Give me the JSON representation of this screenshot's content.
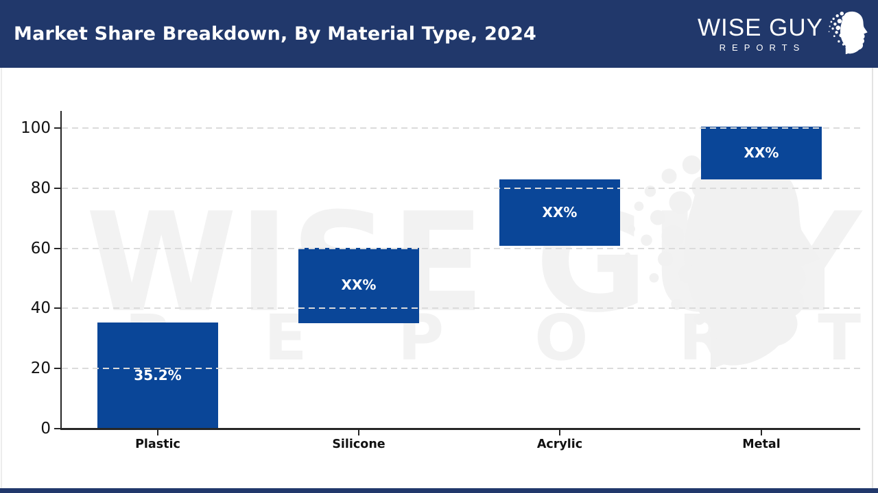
{
  "header": {
    "title": "Market Share Breakdown, By Material Type, 2024",
    "logo": {
      "line1": "WISE GUY",
      "line2": "REPORTS"
    }
  },
  "watermark": {
    "line1": "WISE GUY",
    "line2": "R E P O R T S"
  },
  "chart_data": {
    "type": "bar",
    "subtype": "waterfall-floating-bars",
    "title": "Market Share Breakdown, By Material Type, 2024",
    "categories": [
      "Plastic",
      "Silicone",
      "Acrylic",
      "Metal"
    ],
    "bars": [
      {
        "category": "Plastic",
        "start": 0,
        "end": 35.2,
        "label": "35.2%"
      },
      {
        "category": "Silicone",
        "start": 35.2,
        "end": 60.2,
        "label": "XX%"
      },
      {
        "category": "Acrylic",
        "start": 60.7,
        "end": 82.9,
        "label": "XX%"
      },
      {
        "category": "Metal",
        "start": 82.9,
        "end": 100.4,
        "label": "XX%"
      }
    ],
    "yticks": [
      0,
      20,
      40,
      60,
      80,
      100
    ],
    "ylim": [
      0,
      105
    ],
    "xlabel": "",
    "ylabel": "",
    "grid": true,
    "gridline_style": "dashed",
    "legend": "none"
  },
  "colors": {
    "header_bg": "#21386B",
    "bar_fill": "#0A4698",
    "bar_label_text": "#FFFFFF",
    "watermark": "#F2F2F2",
    "gridline": "#DBDBDB",
    "axis": "#262626",
    "tick_text": "#111111"
  }
}
